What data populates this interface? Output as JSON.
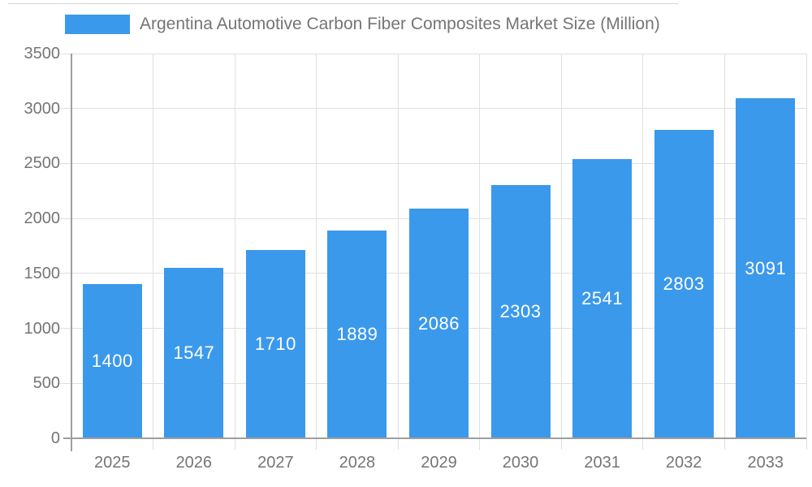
{
  "chart_data": {
    "type": "bar",
    "title": "Argentina Automotive Carbon Fiber Composites Market Size (Million)",
    "legend_entries": [
      "Argentina Automotive Carbon Fiber Composites Market Size (Million)"
    ],
    "legend_position": "top",
    "categories": [
      "2025",
      "2026",
      "2027",
      "2028",
      "2029",
      "2030",
      "2031",
      "2032",
      "2033"
    ],
    "series": [
      {
        "name": "Argentina Automotive Carbon Fiber Composites Market Size (Million)",
        "values": [
          1400,
          1547,
          1710,
          1889,
          2086,
          2303,
          2541,
          2803,
          3091
        ]
      }
    ],
    "bar_value_labels": [
      "1400",
      "1547",
      "1710",
      "1889",
      "2086",
      "2303",
      "2541",
      "2803",
      "3091"
    ],
    "xlabel": "",
    "ylabel": "",
    "ylim": [
      0,
      3500
    ],
    "ytick_step": 500,
    "ytick_labels": [
      "0",
      "500",
      "1000",
      "1500",
      "2000",
      "2500",
      "3000",
      "3500"
    ],
    "grid": true,
    "colors": {
      "bar": "#3b99ec",
      "grid": "#e0e0e0",
      "axis": "#9e9e9e",
      "text": "#757575",
      "bar_label": "#ffffff",
      "top_rule": "#d6d6d6",
      "background": "#ffffff"
    }
  }
}
